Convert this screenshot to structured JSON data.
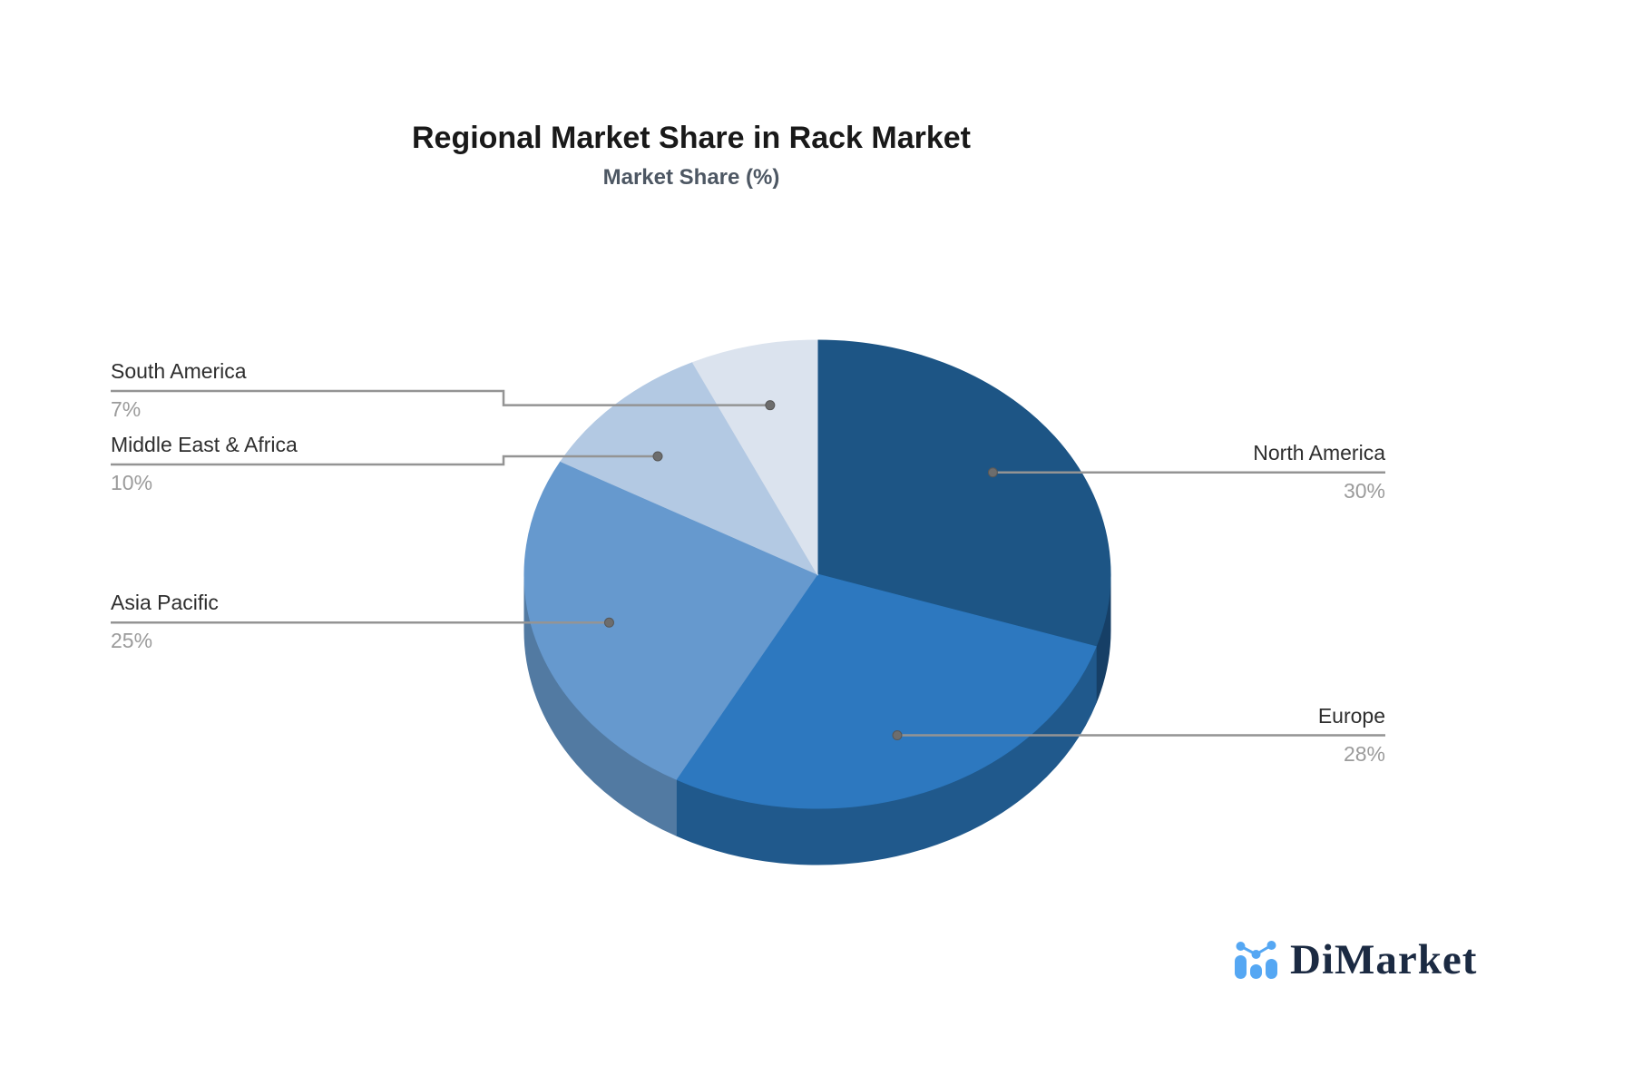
{
  "title": "Regional Market Share in Rack Market",
  "subtitle": "Market Share (%)",
  "logo": {
    "text": "DiMarket",
    "icon_color": "#55a7f3",
    "text_color": "#1b2a42"
  },
  "palette": {
    "leader_line": "#949494",
    "anchor_dot": "#6d6d6d",
    "label_text": "#2e2e2e",
    "percent_text": "#9b9b9b",
    "title_text": "#191919",
    "subtitle_text": "#4d5763",
    "background": "#ffffff"
  },
  "chart_data": {
    "type": "pie",
    "title": "Regional Market Share in Rack Market",
    "subtitle": "Market Share (%)",
    "unit": "%",
    "effect": "3d",
    "direction": "clockwise",
    "start_angle": "12-o-clock",
    "legend": "none",
    "categories": [
      "North America",
      "Europe",
      "Asia Pacific",
      "Middle East & Africa",
      "South America"
    ],
    "values": [
      30,
      28,
      25,
      10,
      7
    ],
    "slices": [
      {
        "label": "North America",
        "value": 30,
        "display": "30%",
        "color": "#1d5585",
        "side_color": "#163f66"
      },
      {
        "label": "Europe",
        "value": 28,
        "display": "28%",
        "color": "#2d78bf",
        "side_color": "#20598c"
      },
      {
        "label": "Asia Pacific",
        "value": 25,
        "display": "25%",
        "color": "#6699ce",
        "side_color": "#527aa2"
      },
      {
        "label": "Middle East & Africa",
        "value": 10,
        "display": "10%",
        "color": "#b3c9e3",
        "side_color": "#8ba6c4"
      },
      {
        "label": "South America",
        "value": 7,
        "display": "7%",
        "color": "#dbe3ee",
        "side_color": "#b5c2d6"
      }
    ]
  }
}
